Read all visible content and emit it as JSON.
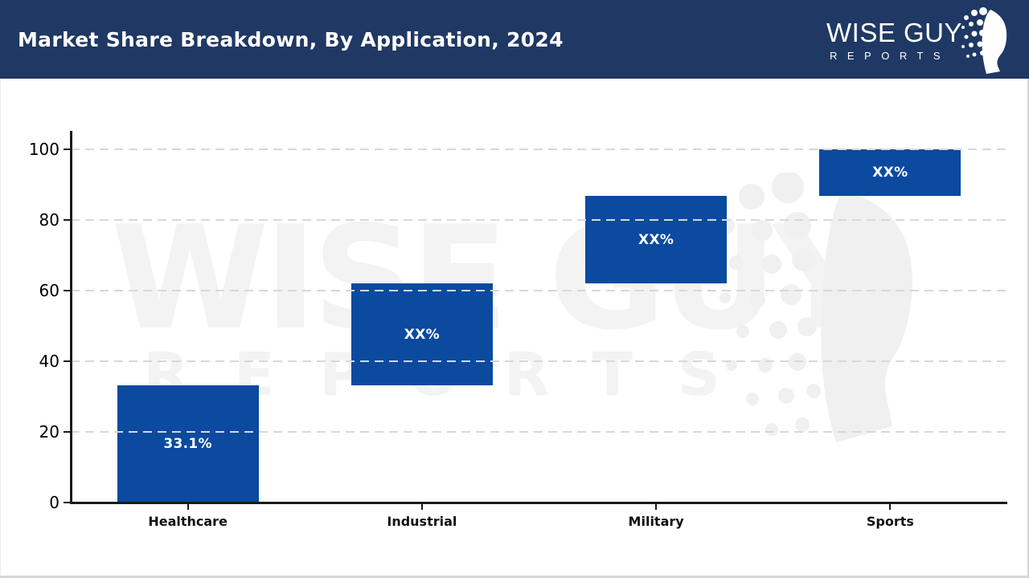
{
  "header": {
    "title": "Market Share Breakdown, By Application, 2024",
    "bg_color": "#1f3864",
    "logo": {
      "line1": "WISE GUY",
      "line2": "REPORTS"
    }
  },
  "watermark": {
    "line1": "WISE GUY",
    "line2": "REPORTS"
  },
  "chart_data": {
    "type": "bar",
    "subtype": "waterfall",
    "title": "Market Share Breakdown, By Application, 2024",
    "categories": [
      "Healthcare",
      "Industrial",
      "Military",
      "Sports"
    ],
    "bars": [
      {
        "category": "Healthcare",
        "start": 0,
        "end": 33.1,
        "label": "33.1%"
      },
      {
        "category": "Industrial",
        "start": 33.1,
        "end": 62.0,
        "label": "XX%"
      },
      {
        "category": "Military",
        "start": 62.0,
        "end": 86.8,
        "label": "XX%"
      },
      {
        "category": "Sports",
        "start": 86.8,
        "end": 100,
        "label": "XX%"
      }
    ],
    "yticks": [
      0,
      20,
      40,
      60,
      80,
      100
    ],
    "ylim": [
      0,
      105
    ],
    "bar_color": "#0b4a9e",
    "grid": "dashed-horizontal",
    "legend": "none",
    "xlabel": "",
    "ylabel": ""
  }
}
